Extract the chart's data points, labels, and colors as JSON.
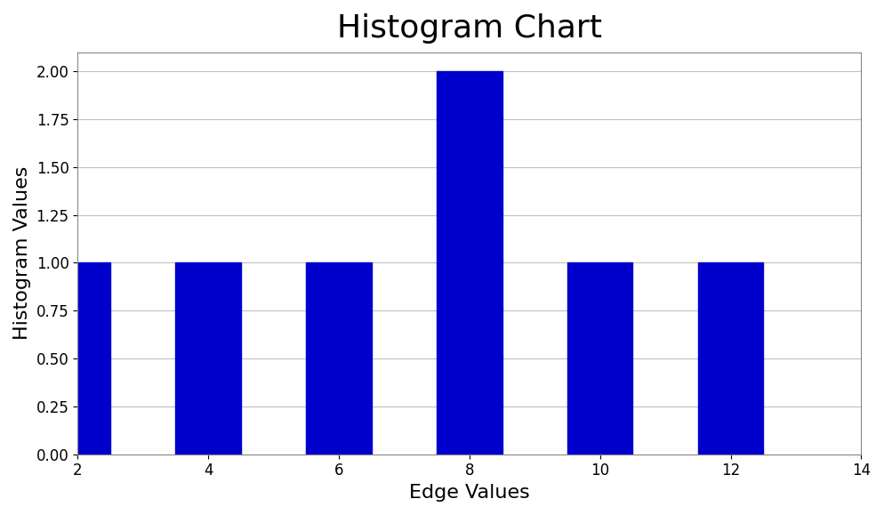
{
  "title": "Histogram Chart",
  "xlabel": "Edge Values",
  "ylabel": "Histogram Values",
  "hist_values": [
    1,
    1,
    1,
    2,
    1,
    1
  ],
  "bar_centers": [
    2,
    4,
    6,
    8,
    10,
    12
  ],
  "bar_width": 1.0,
  "bar_color": "#0000cc",
  "xlim": [
    2,
    14
  ],
  "ylim": [
    0,
    2.1
  ],
  "xticks": [
    2,
    4,
    6,
    8,
    10,
    12,
    14
  ],
  "yticks": [
    0.0,
    0.25,
    0.5,
    0.75,
    1.0,
    1.25,
    1.5,
    1.75,
    2.0
  ],
  "title_fontsize": 26,
  "label_fontsize": 16,
  "tick_fontsize": 12,
  "background_color": "#ffffff",
  "grid_color": "#c0c0c0",
  "window_bg": "#d4d0c8",
  "titlebar_bg": "#5c5c5c",
  "titlebar_fg": "#ffffff"
}
